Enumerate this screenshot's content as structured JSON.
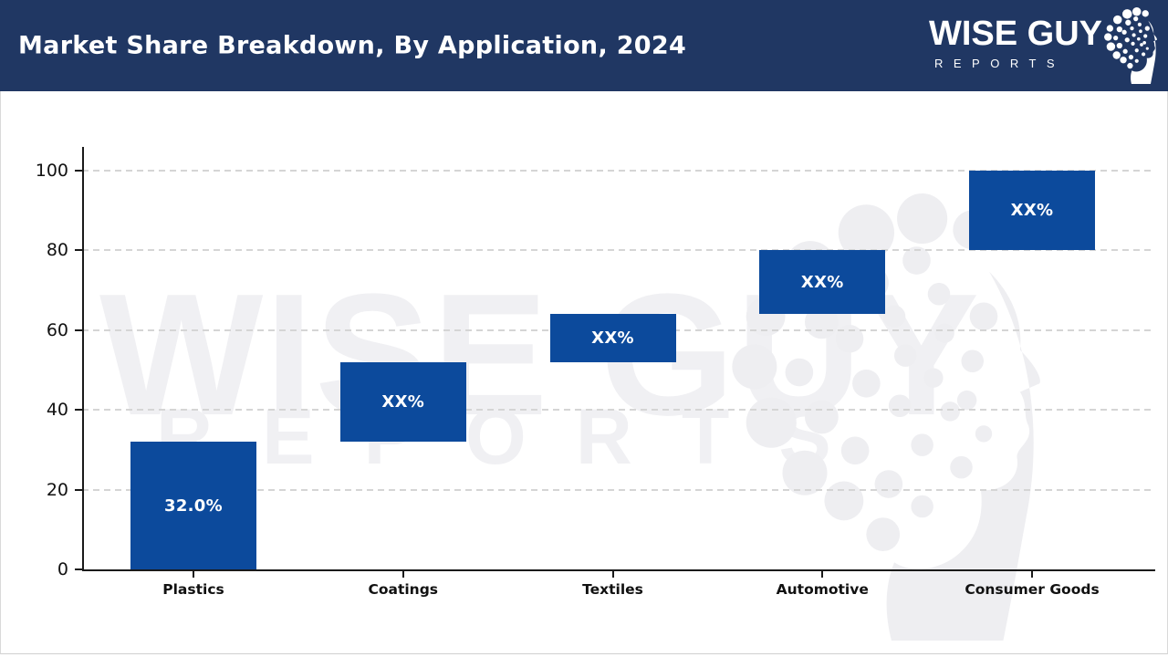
{
  "header": {
    "title": "Market Share Breakdown, By Application, 2024",
    "logo": {
      "name": "WISE GUY",
      "sub": "REPORTS",
      "icon": "dotted-face-profile"
    }
  },
  "watermark": {
    "name": "WISE GUY",
    "sub": "REPORTS",
    "icon": "dotted-face-profile"
  },
  "colors": {
    "header_bg": "#203763",
    "bar": "#0c4a9c",
    "grid": "#d5d5d5",
    "axis": "#1a1a1a",
    "bar_label_text": "#ffffff",
    "watermark": "#f0f0f3"
  },
  "chart_data": {
    "type": "bar",
    "variant": "waterfall",
    "title": "Market Share Breakdown, By Application, 2024",
    "categories": [
      "Plastics",
      "Coatings",
      "Textiles",
      "Automotive",
      "Consumer Goods"
    ],
    "series": [
      {
        "name": "Market share (%)",
        "start": [
          0,
          32,
          52,
          64,
          80
        ],
        "end": [
          32,
          52,
          64,
          80,
          100
        ],
        "values": [
          32,
          20,
          12,
          16,
          20
        ]
      }
    ],
    "bar_labels": [
      "32.0%",
      "XX%",
      "XX%",
      "XX%",
      "XX%"
    ],
    "xlabel": "",
    "ylabel": "",
    "ylim": [
      0,
      100
    ],
    "yticks": [
      0,
      20,
      40,
      60,
      80,
      100
    ],
    "grid": "horizontal-dashed",
    "legend": "none"
  }
}
